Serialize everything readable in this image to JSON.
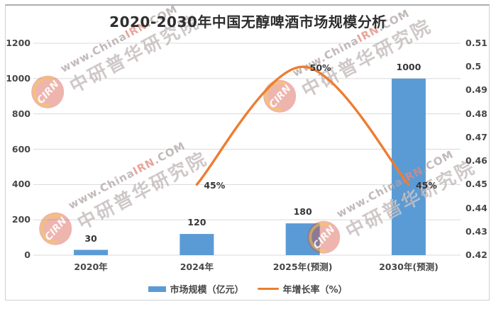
{
  "chart_data": {
    "type": "combo-bar-line",
    "title": "2020-2030年中国无醇啤酒市场规模分析",
    "categories": [
      "2020年",
      "2024年",
      "2025年(预测)",
      "2030年(预测)"
    ],
    "series": [
      {
        "name": "市场规模（亿元）",
        "type": "bar",
        "axis": "left",
        "color": "#5B9BD5",
        "values": [
          30,
          120,
          180,
          1000
        ],
        "value_labels": [
          "30",
          "120",
          "180",
          "1000"
        ]
      },
      {
        "name": "年增长率（%）",
        "type": "line",
        "axis": "right",
        "color": "#ED7D31",
        "values": [
          null,
          0.45,
          0.5,
          0.45
        ],
        "value_labels": [
          null,
          "45%",
          "50%",
          "45%"
        ]
      }
    ],
    "left_axis": {
      "min": 0,
      "max": 1200,
      "step": 200,
      "ticks": [
        "1200",
        "1000",
        "800",
        "600",
        "400",
        "200",
        "0"
      ]
    },
    "right_axis": {
      "min": 0.42,
      "max": 0.51,
      "step": 0.01,
      "ticks": [
        "0.51",
        "0.5",
        "0.49",
        "0.48",
        "0.47",
        "0.46",
        "0.45",
        "0.44",
        "0.43",
        "0.42"
      ]
    },
    "grid": true,
    "legend_position": "bottom"
  },
  "watermark": {
    "badge_text": "CIRN",
    "url_prefix": "www.China",
    "url_mid": "IRN",
    "url_suffix": ".COM",
    "org_text": "中研普华研究院"
  },
  "colors": {
    "bar": "#5B9BD5",
    "line": "#ED7D31",
    "grid": "#D9D9D9",
    "tick_text": "#474747",
    "title_text": "#2e2e2e"
  }
}
